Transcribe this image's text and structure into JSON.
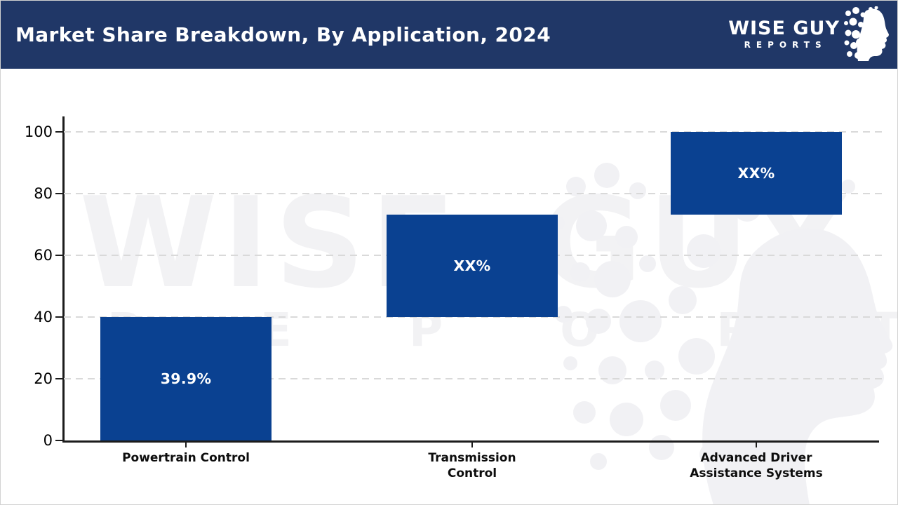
{
  "header": {
    "title": "Market Share Breakdown, By Application, 2024",
    "background": "#203767",
    "brand": {
      "line1": "WISE GUY",
      "line2": "REPORTS"
    }
  },
  "watermark": {
    "line1": "WISE GUY",
    "line2": "R E P O R T S"
  },
  "chart_data": {
    "type": "bar",
    "subtype": "waterfall-segments",
    "title": "Market Share Breakdown, By Application, 2024",
    "categories": [
      "Powertrain Control",
      "Transmission Control",
      "Advanced Driver Assistance Systems"
    ],
    "category_lines": [
      [
        "Powertrain Control"
      ],
      [
        "Transmission",
        "Control"
      ],
      [
        "Advanced Driver",
        "Assistance Systems"
      ]
    ],
    "bars": [
      {
        "category": "Powertrain Control",
        "start": 0,
        "end": 39.9,
        "label": "39.9%"
      },
      {
        "category": "Transmission Control",
        "start": 39.9,
        "end": 73.2,
        "label": "XX%"
      },
      {
        "category": "Advanced Driver Assistance Systems",
        "start": 73.2,
        "end": 100,
        "label": "XX%"
      }
    ],
    "values": [
      39.9,
      33.3,
      26.8
    ],
    "bar_color": "#0a4191",
    "xlabel": "",
    "ylabel": "",
    "ylim": [
      0,
      100
    ],
    "yticks": [
      0,
      20,
      40,
      60,
      80,
      100
    ],
    "grid": "horizontal-dashed",
    "gridline_color": "#d9d9d9",
    "axis_color": "#1c1c1c",
    "legend": "none"
  }
}
